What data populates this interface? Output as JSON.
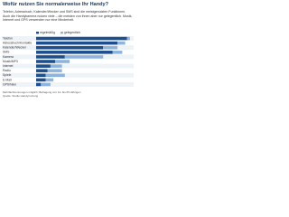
{
  "chart_data": {
    "type": "bar",
    "title": "Wofür nutzen Sie normalerweise Ihr Handy?",
    "subtitle": "Telefon, Adressbuch, Kalender/Wecker und SMS sind die meistgenutzten Funktionen. Auch die Handykamera nutzen viele – die meisten von ihnen aber nur gelegentlich. Musik, Internet und GPS verwenden nur eine Minderheit.",
    "categories": [
      "Telefon",
      "Adressbuch/Kontakte",
      "Kalender/Wecker",
      "SMS",
      "Kamera",
      "Musik/MP3",
      "Internet",
      "Radio",
      "Spiele",
      "E-Mail",
      "GPS/Navi"
    ],
    "series": [
      {
        "name": "regelmäßig",
        "color": "#1f4e8c",
        "values": [
          95,
          85,
          70,
          80,
          30,
          20,
          15,
          12,
          10,
          10,
          5
        ]
      },
      {
        "name": "gelegentlich",
        "color": "#8fb4dc",
        "values": [
          3,
          8,
          15,
          10,
          40,
          15,
          12,
          15,
          20,
          8,
          10
        ]
      }
    ],
    "xlim": [
      0,
      100
    ],
    "footnotes": [
      "Mehrfachnennungen möglich; Befragung von 14- bis 65-Jährigen",
      "Quelle: Studie Handynutzung"
    ]
  }
}
